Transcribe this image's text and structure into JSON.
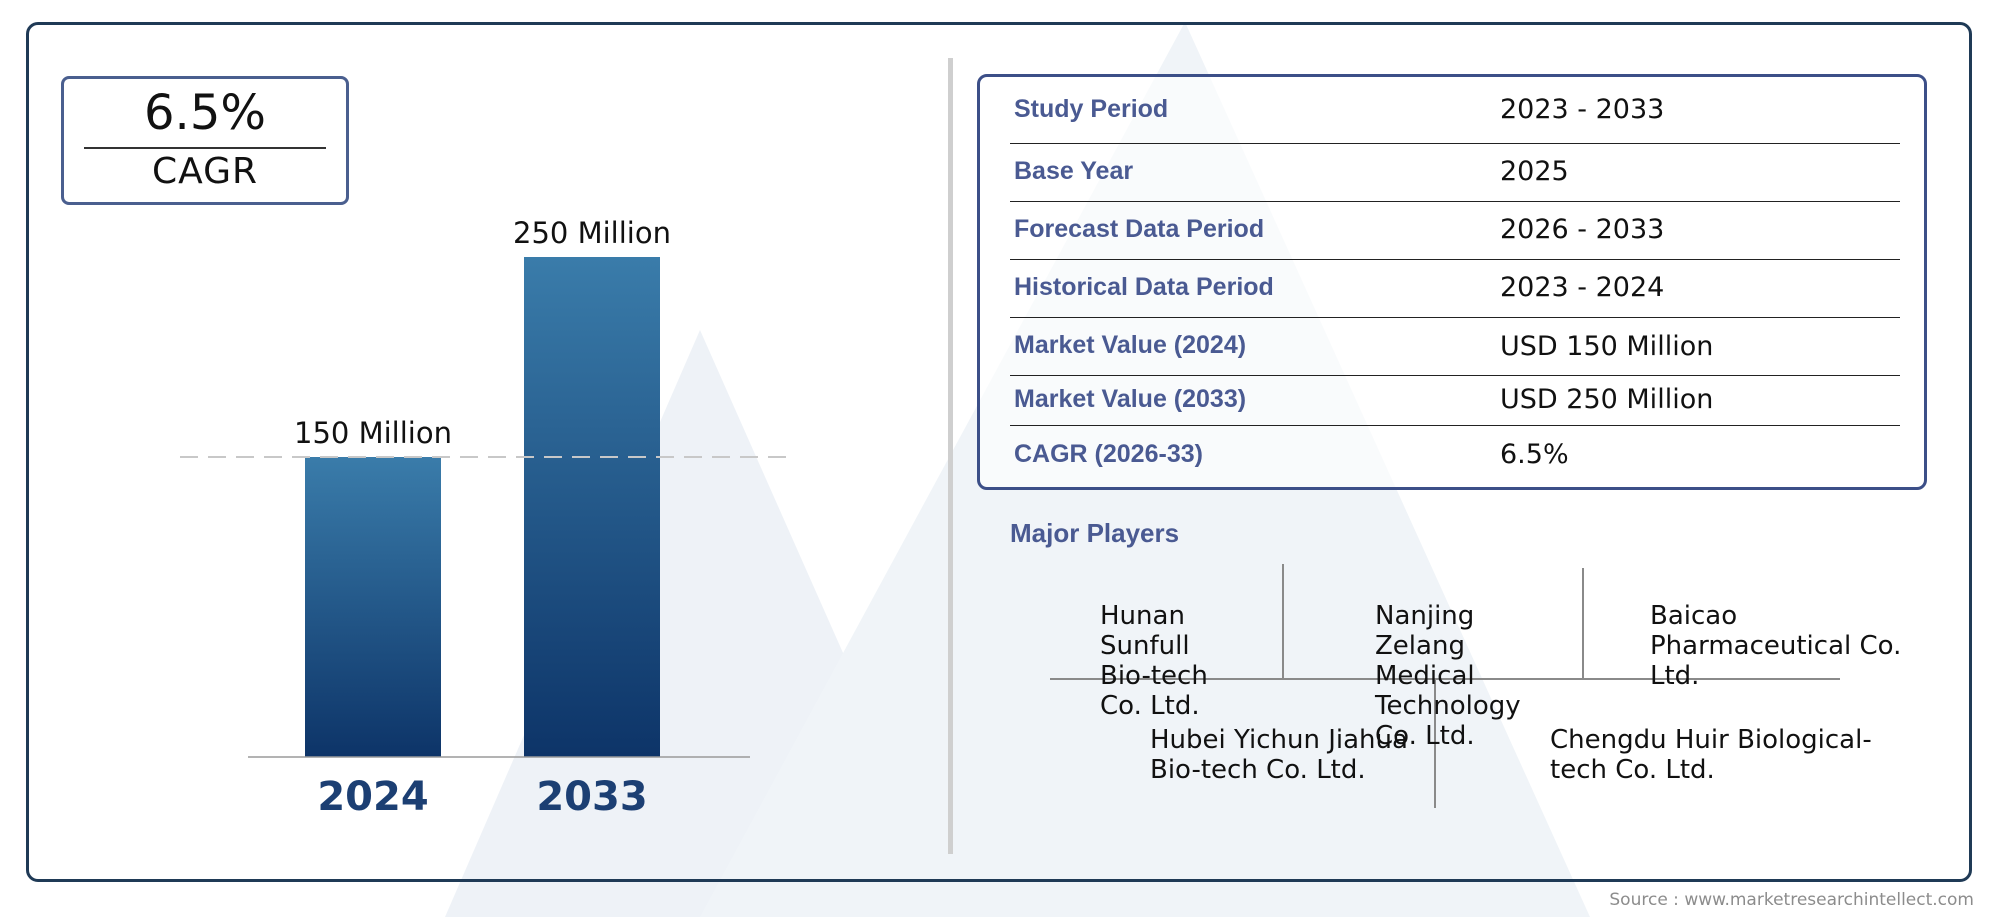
{
  "cagr_box": {
    "value": "6.5%",
    "label": "CAGR"
  },
  "chart_data": {
    "type": "bar",
    "categories": [
      "2024",
      "2033"
    ],
    "values": [
      150,
      250
    ],
    "data_labels": [
      "150 Million",
      "250 Million"
    ],
    "reference_line": 150,
    "ylim": [
      0,
      250
    ],
    "bar_gradient": [
      "#3a7caa",
      "#0d3468"
    ],
    "category_color": "#1c3f73"
  },
  "info_table": {
    "rows": [
      {
        "label": "Study Period",
        "value": "2023 - 2033"
      },
      {
        "label": "Base Year",
        "value": "2025"
      },
      {
        "label": "Forecast Data Period",
        "value": "2026 - 2033"
      },
      {
        "label": "Historical Data Period",
        "value": "2023 - 2024"
      },
      {
        "label": "Market Value (2024)",
        "value": "USD 150 Million"
      },
      {
        "label": "Market Value (2033)",
        "value": "USD 250 Million"
      },
      {
        "label": "CAGR (2026-33)",
        "value": "6.5%"
      }
    ]
  },
  "players": {
    "title": "Major Players",
    "names": [
      "Hunan Sunfull Bio-tech Co. Ltd.",
      "Nanjing Zelang Medical Technology Co. Ltd.",
      "Baicao Pharmaceutical Co. Ltd.",
      "Hubei Yichun Jiahua Bio-tech Co. Ltd.",
      "Chengdu Huir Biological-tech Co. Ltd."
    ]
  },
  "source": "Source : www.marketresearchintellect.com",
  "colors": {
    "frame": "#1f3a56",
    "accent": "#4a5a92",
    "watermark": "#eef2f7"
  }
}
